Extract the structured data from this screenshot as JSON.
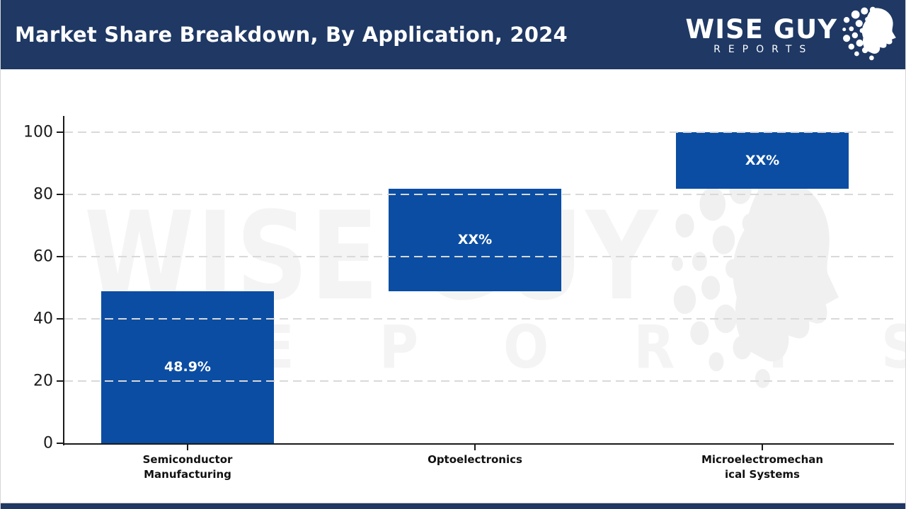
{
  "header": {
    "title": "Market Share Breakdown, By Application, 2024",
    "logo": {
      "line1": "WISE GUY",
      "line2": "REPORTS"
    }
  },
  "watermark": {
    "line1": "WISE GUY",
    "line2": "R E P O R T S"
  },
  "colors": {
    "header_bg": "#1f3864",
    "footer_bg": "#1f3864",
    "bar": "#0b4da2",
    "bar_label": "#ffffff",
    "grid": "#d9d9d9",
    "watermark": "#f2f2f2"
  },
  "chart_data": {
    "type": "bar",
    "subtype": "waterfall",
    "title": "Market Share Breakdown, By Application, 2024",
    "categories": [
      "Semiconductor Manufacturing",
      "Optoelectronics",
      "Microelectromechanical Systems"
    ],
    "category_label_lines": [
      [
        "Semiconductor",
        "Manufacturing"
      ],
      [
        "Optoelectronics"
      ],
      [
        "Microelectromechan",
        "ical Systems"
      ]
    ],
    "series": [
      {
        "category": "Semiconductor Manufacturing",
        "start": 0,
        "end": 48.9,
        "label": "48.9%"
      },
      {
        "category": "Optoelectronics",
        "start": 48.9,
        "end": 81.8,
        "label": "XX%"
      },
      {
        "category": "Microelectromechanical Systems",
        "start": 81.8,
        "end": 100,
        "label": "XX%"
      }
    ],
    "ylim": [
      0,
      100
    ],
    "yticks": [
      0,
      20,
      40,
      60,
      80,
      100
    ],
    "ytick_labels": [
      "0",
      "20",
      "40",
      "60",
      "80",
      "100"
    ],
    "xlabel": "",
    "ylabel": "",
    "grid": "horizontal dashed",
    "legend": "none",
    "gridlines_above_bars": true
  }
}
